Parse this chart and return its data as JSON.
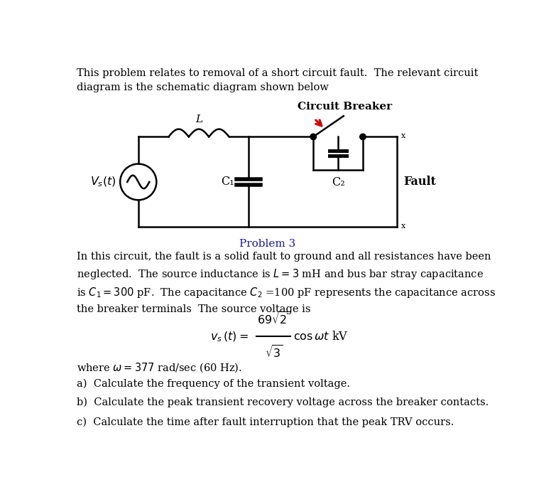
{
  "title_text": "This problem relates to removal of a short circuit fault.  The relevant circuit\ndiagram is the schematic diagram shown below",
  "circuit_breaker_label": "Circuit Breaker",
  "L_label": "L",
  "C1_label": "C₁",
  "C2_label": "C₂",
  "fault_label": "Fault",
  "problem_label": "Problem 3",
  "paragraph1": "In this circuit, the fault is a solid fault to ground and all resistances have been\nneglected.  The source inductance is $L = 3$ mH and bus bar stray capacitance\nis $C_1 = 300$ pF.  The capacitance $C_2$ =100 pF represents the capacitance across\nthe breaker terminals  The source voltage is",
  "equation_left": "$v_s\\,(t) =$",
  "equation_num": "$69\\sqrt{2}$",
  "equation_den": "$\\sqrt{3}$",
  "equation_right": "$\\cos\\omega t$ kV",
  "omega_text": "where $\\omega = 377$ rad/sec (60 Hz).",
  "qa": "a)  Calculate the frequency of the transient voltage.",
  "qb": "b)  Calculate the peak transient recovery voltage across the breaker contacts.",
  "qc": "c)  Calculate the time after fault interruption that the peak TRV occurs.",
  "bg_color": "#ffffff",
  "text_color": "#000000",
  "circuit_color": "#000000",
  "arrow_color": "#cc0000",
  "problem3_color": "#1a1a99"
}
